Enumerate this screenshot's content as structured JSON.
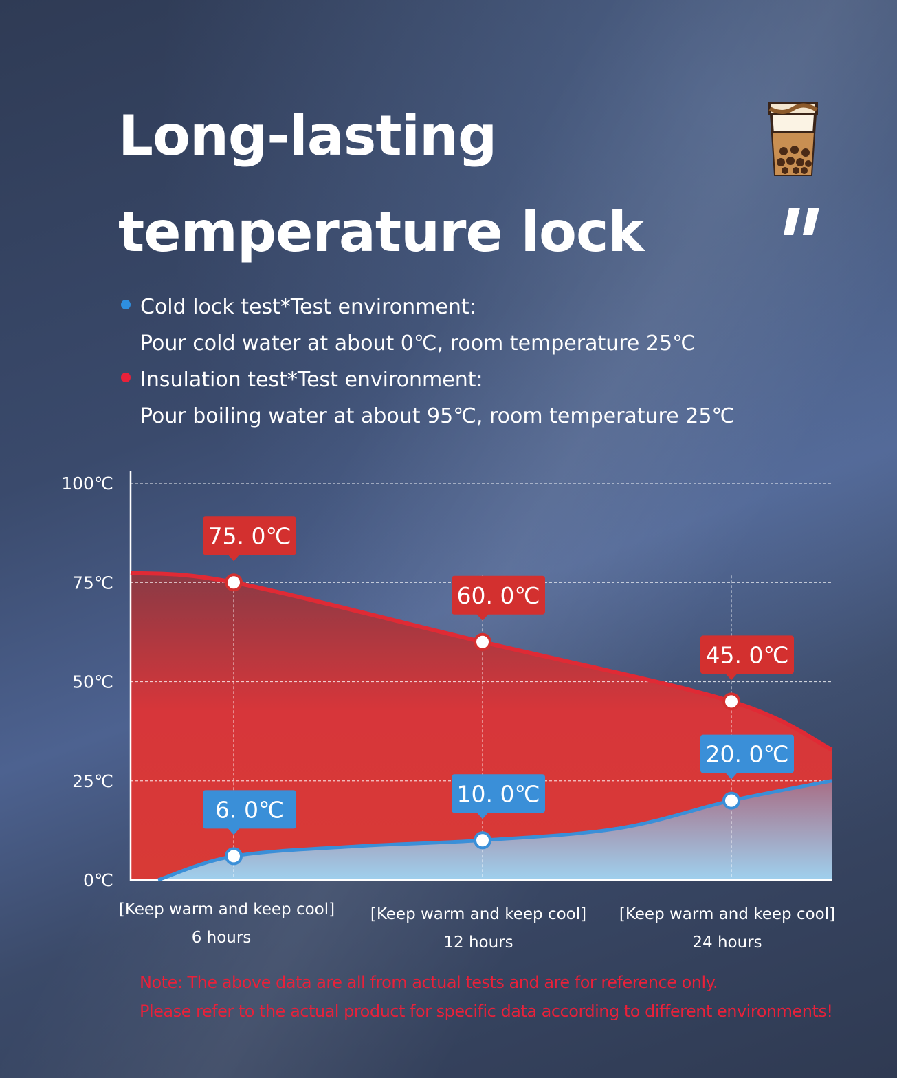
{
  "header": {
    "title_line1": "Long-lasting",
    "title_line2": "temperature lock"
  },
  "icons": {
    "cup": "bubble-tea-cup-icon",
    "quote": "quote-mark-icon"
  },
  "legend": {
    "cold": {
      "color": "#2e8fe0",
      "label": "Cold lock test*Test environment:",
      "detail": "Pour cold water at about 0℃, room temperature 25℃"
    },
    "hot": {
      "color": "#e8213a",
      "label": "Insulation test*Test environment:",
      "detail": "Pour boiling water at about 95℃, room temperature 25℃"
    }
  },
  "chart_data": {
    "type": "area",
    "ylim": [
      0,
      100
    ],
    "yticks": [
      "100℃",
      "75℃",
      "50℃",
      "25℃",
      "0℃"
    ],
    "ytick_values": [
      100,
      75,
      50,
      25,
      0
    ],
    "grid": true,
    "categories": [
      {
        "line1": "[Keep warm and keep cool]",
        "line2": "6 hours"
      },
      {
        "line1": "[Keep warm and keep cool]",
        "line2": "12 hours"
      },
      {
        "line1": "[Keep warm and keep cool]",
        "line2": "24 hours"
      }
    ],
    "series": [
      {
        "key": "hot",
        "color": "#e02a35",
        "values": [
          75.0,
          60.0,
          45.0
        ],
        "labels": [
          "75. 0℃",
          "60. 0℃",
          "45. 0℃"
        ]
      },
      {
        "key": "cold",
        "color": "#3a8fd8",
        "values": [
          6.0,
          10.0,
          20.0
        ],
        "labels": [
          "6. 0℃",
          "10. 0℃",
          "20. 0℃"
        ]
      }
    ]
  },
  "note": {
    "line1": "Note: The above data are all from actual tests and are for reference only.",
    "line2": "Please refer to the actual product for specific data according to different environments!"
  }
}
